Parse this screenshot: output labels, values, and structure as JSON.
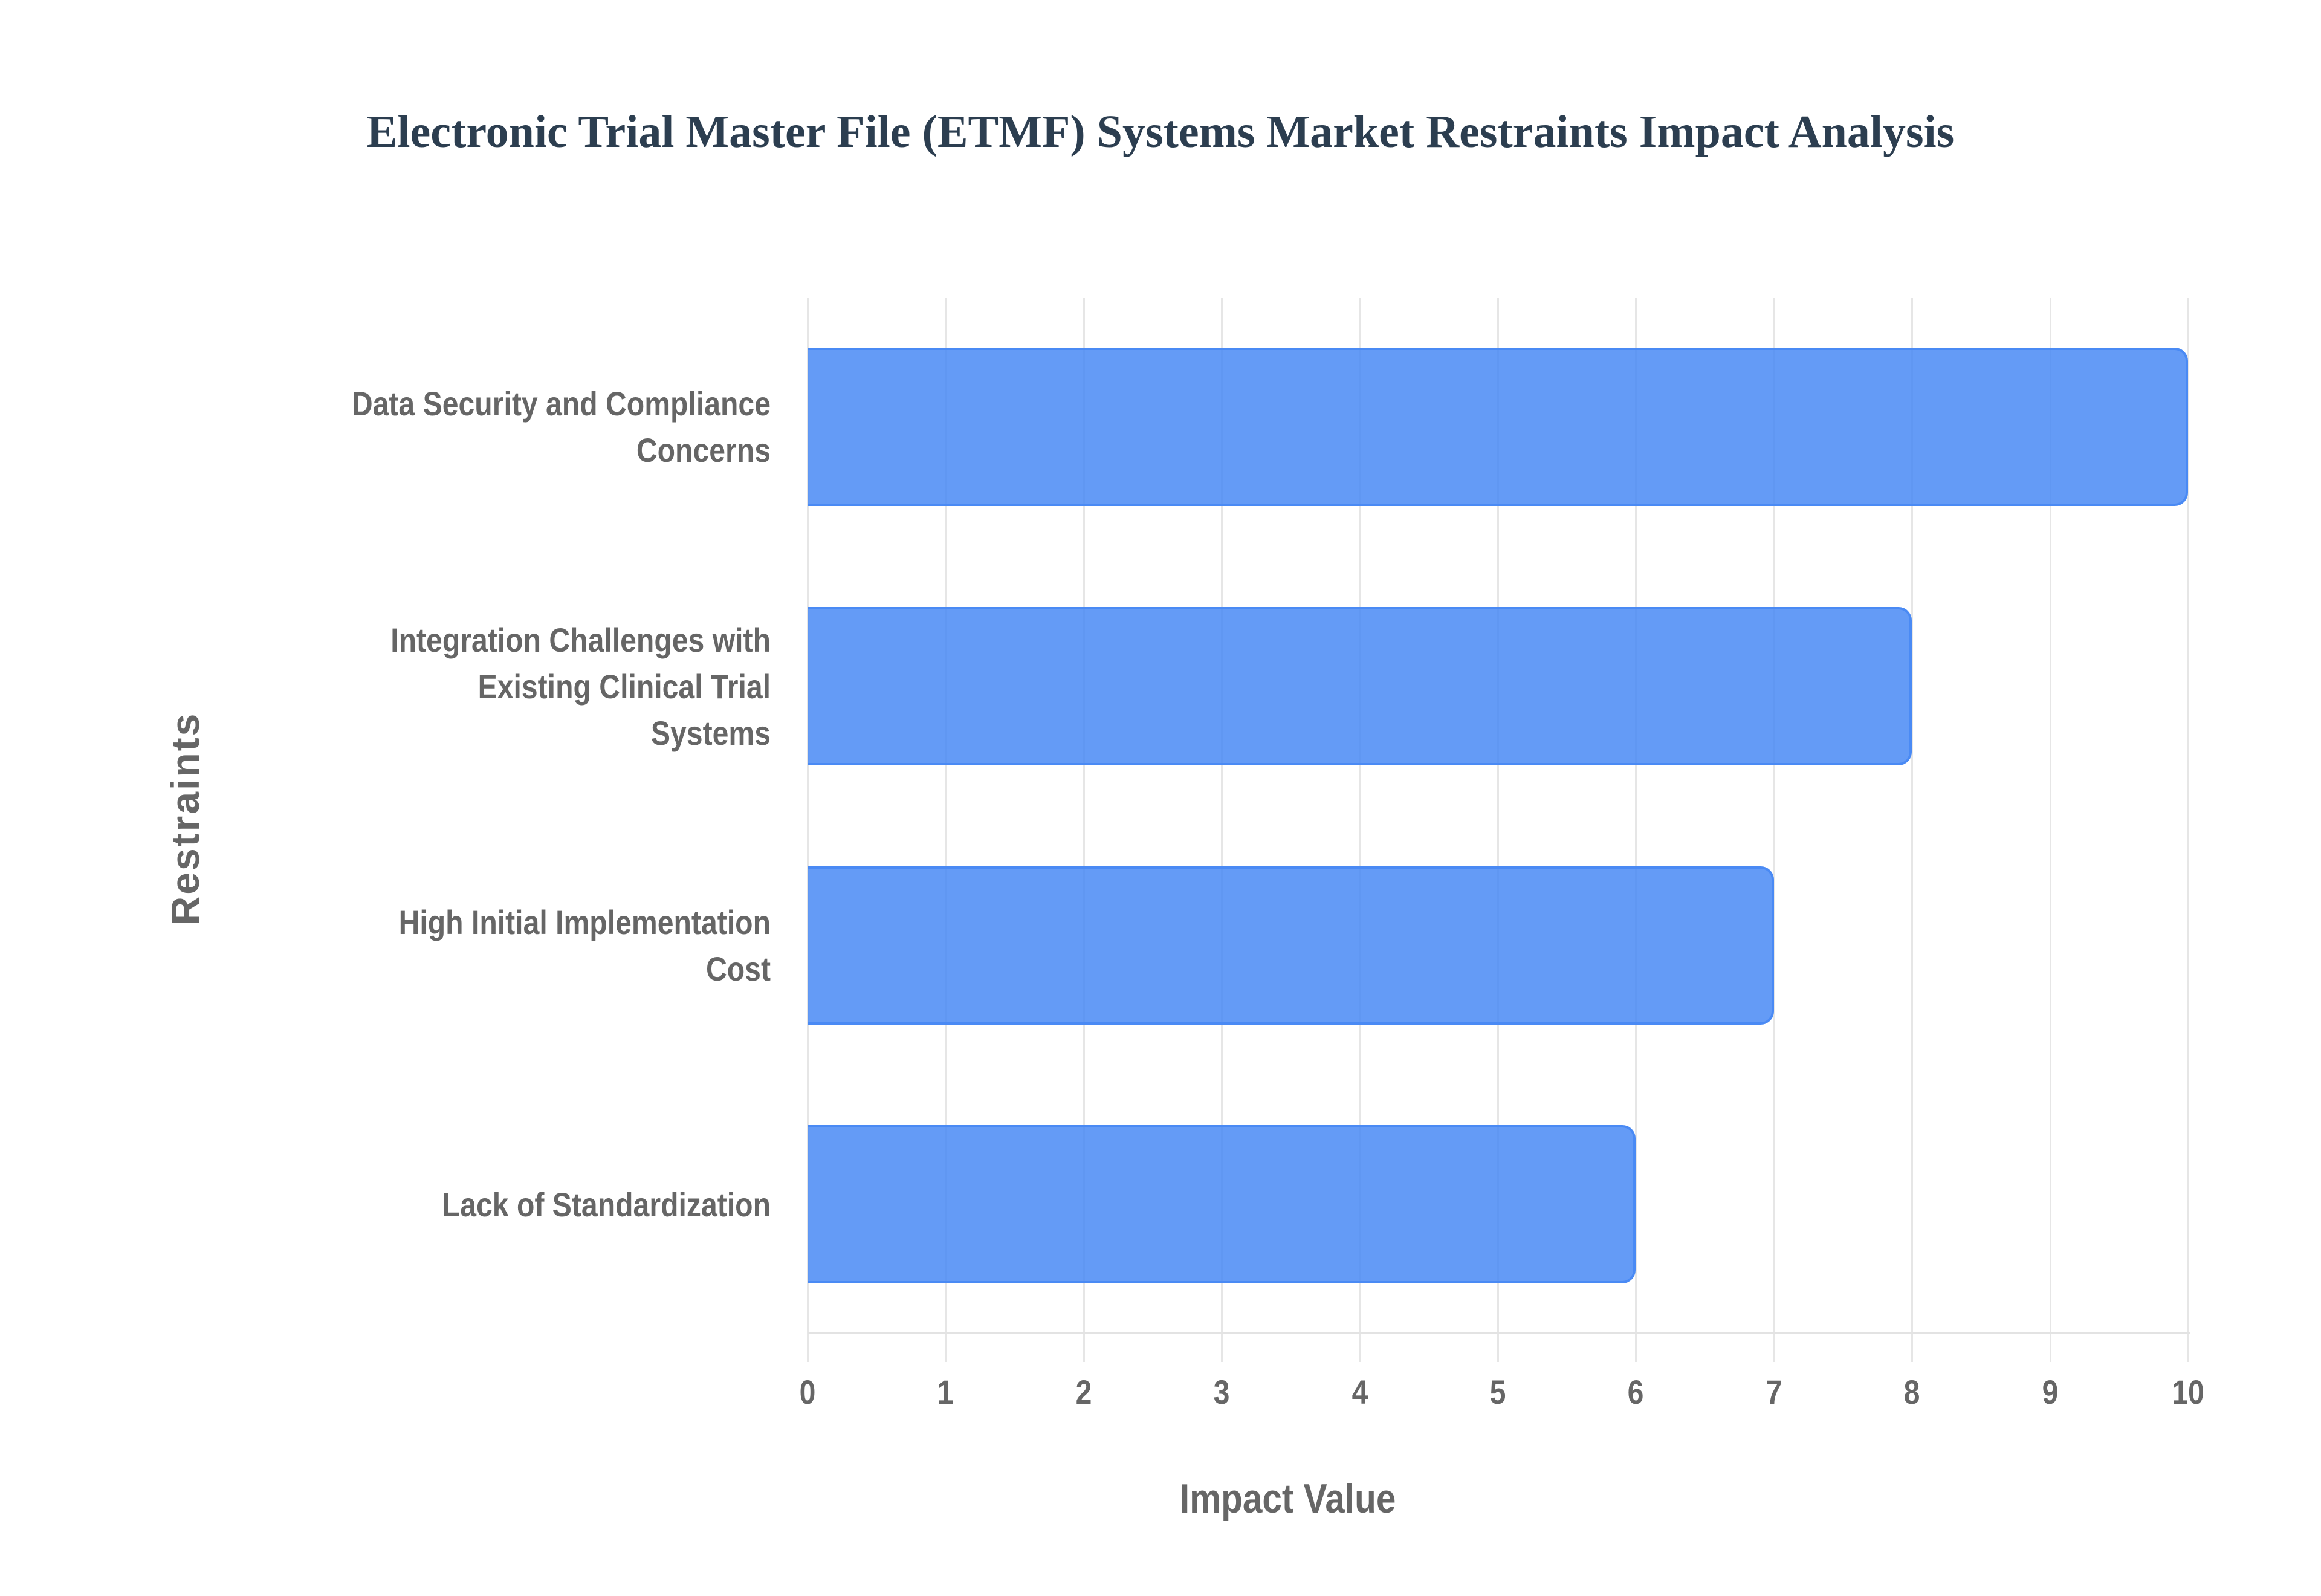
{
  "chart_data": {
    "type": "bar",
    "orientation": "horizontal",
    "title": "Electronic Trial Master File (ETMF) Systems Market Restraints Impact Analysis",
    "xlabel": "Impact Value",
    "ylabel": "Restraints",
    "categories": [
      "Data Security and Compliance Concerns",
      "Integration Challenges with Existing Clinical Trial Systems",
      "High Initial Implementation Cost",
      "Lack of Standardization"
    ],
    "category_lines": [
      [
        "Data Security and Compliance",
        "Concerns"
      ],
      [
        "Integration Challenges with",
        "Existing Clinical Trial",
        "Systems"
      ],
      [
        "High Initial Implementation",
        "Cost"
      ],
      [
        "Lack of Standardization"
      ]
    ],
    "values": [
      10,
      8,
      7,
      6
    ],
    "xlim": [
      0,
      10
    ],
    "xticks": [
      "0",
      "1",
      "2",
      "3",
      "4",
      "5",
      "6",
      "7",
      "8",
      "9",
      "10"
    ],
    "grid": true,
    "legend": null,
    "colors": {
      "bar_fill": "#6199f5",
      "bar_border": "#4285f4",
      "title": "#2c3e50",
      "axis_text": "#666666",
      "grid": "#e6e6e6"
    }
  }
}
